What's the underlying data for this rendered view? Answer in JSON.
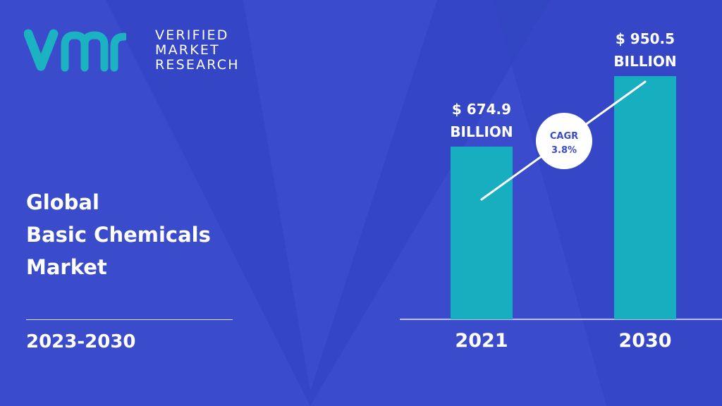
{
  "brand": {
    "line1": "VERIFIED",
    "line2": "MARKET",
    "line3": "RESEARCH",
    "mark_color": "#1bb3c2"
  },
  "report": {
    "title_line1": "Global",
    "title_line2": "Basic Chemicals",
    "title_line3": "Market",
    "period": "2023-2030"
  },
  "colors": {
    "background": "#3a4bcc",
    "bar": "#17aebf",
    "text": "#ffffff",
    "cagr_text": "#3a4bcc"
  },
  "chart_data": {
    "type": "bar",
    "categories": [
      "2021",
      "2030"
    ],
    "values": [
      674.9,
      950.5
    ],
    "value_labels": [
      [
        "$ 674.9",
        "BILLION"
      ],
      [
        "$ 950.5",
        "BILLION"
      ]
    ],
    "ylim": [
      0,
      1000
    ],
    "grid": false,
    "annotation": {
      "label": "CAGR",
      "value": "3.8%"
    }
  }
}
